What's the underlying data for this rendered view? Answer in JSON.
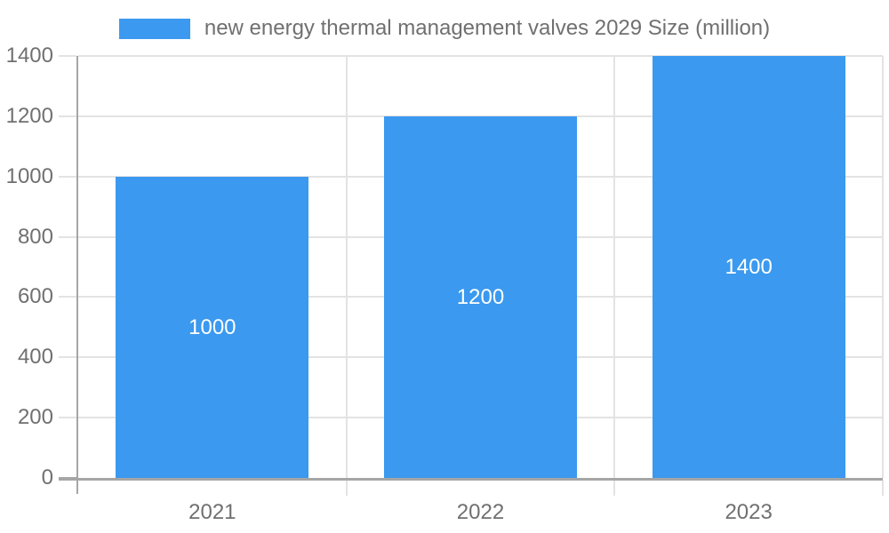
{
  "legend": {
    "label": "new energy thermal management valves 2029 Size (million)"
  },
  "chart_data": {
    "type": "bar",
    "title": "",
    "categories": [
      "2021",
      "2022",
      "2023"
    ],
    "series": [
      {
        "name": "new energy thermal management valves 2029 Size (million)",
        "values": [
          1000,
          1200,
          1400
        ]
      }
    ],
    "value_labels": [
      "1000",
      "1200",
      "1400"
    ],
    "xlabel": "",
    "ylabel": "",
    "ylim": [
      0,
      1400
    ],
    "yticks": [
      0,
      200,
      400,
      600,
      800,
      1000,
      1200,
      1400
    ],
    "grid": true,
    "legend_position": "top",
    "colors": {
      "bar": "#3B99EF",
      "grid_line": "#e3e3e3",
      "axis_line": "#a6a6a6",
      "tick_text": "#707070",
      "legend_text": "#707070",
      "bar_value_text": "#ffffff",
      "background": "#ffffff"
    }
  }
}
